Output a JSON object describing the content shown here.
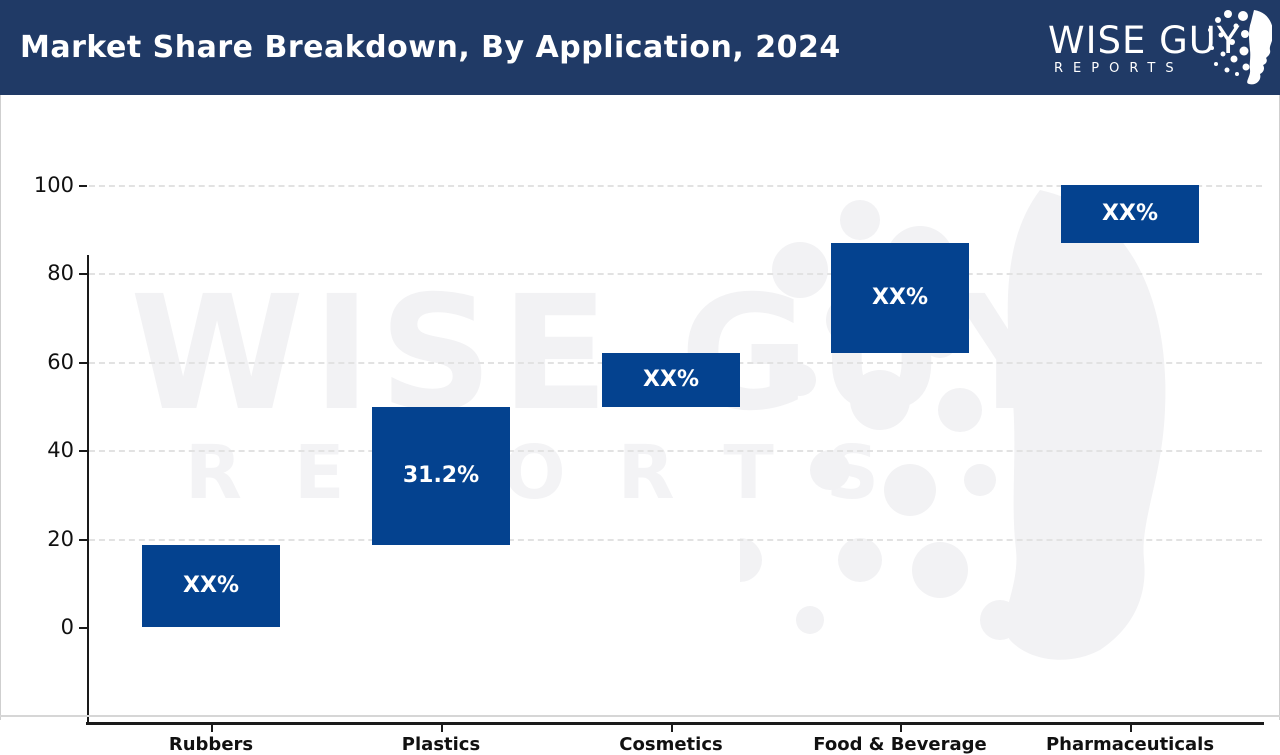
{
  "header": {
    "title": "Market Share Breakdown, By Application, 2024",
    "logo": {
      "line1": "WISE GUY",
      "line2": "REPORTS"
    }
  },
  "watermark": {
    "line1": "WISE GUY",
    "line2": "REPORTS"
  },
  "colors": {
    "header_bg": "#203a66",
    "bar_fill": "#04428f",
    "bar_label": "#ffffff",
    "grid": "#e2e2e2",
    "axis": "#1a1a1a",
    "watermark": "#f2f2f4"
  },
  "chart_data": {
    "type": "bar",
    "subtype": "waterfall-floating-bars",
    "title": "Market Share Breakdown, By Application, 2024",
    "xlabel": "",
    "ylabel": "",
    "ylim": [
      0,
      100
    ],
    "yticks": [
      0,
      20,
      40,
      60,
      80,
      100
    ],
    "grid": "horizontal-dashed",
    "legend": "none",
    "categories": [
      "Rubbers",
      "Plastics",
      "Cosmetics",
      "Food & Beverage",
      "Pharmaceuticals"
    ],
    "segments": [
      {
        "category": "Rubbers",
        "start": 0,
        "end": 18.6,
        "value": 18.6,
        "label": "XX%"
      },
      {
        "category": "Plastics",
        "start": 18.6,
        "end": 49.8,
        "value": 31.2,
        "label": "31.2%"
      },
      {
        "category": "Cosmetics",
        "start": 49.8,
        "end": 61.9,
        "value": 12.1,
        "label": "XX%"
      },
      {
        "category": "Food & Beverage",
        "start": 61.9,
        "end": 86.8,
        "value": 24.9,
        "label": "XX%"
      },
      {
        "category": "Pharmaceuticals",
        "start": 86.8,
        "end": 100,
        "value": 13.2,
        "label": "XX%"
      }
    ]
  }
}
